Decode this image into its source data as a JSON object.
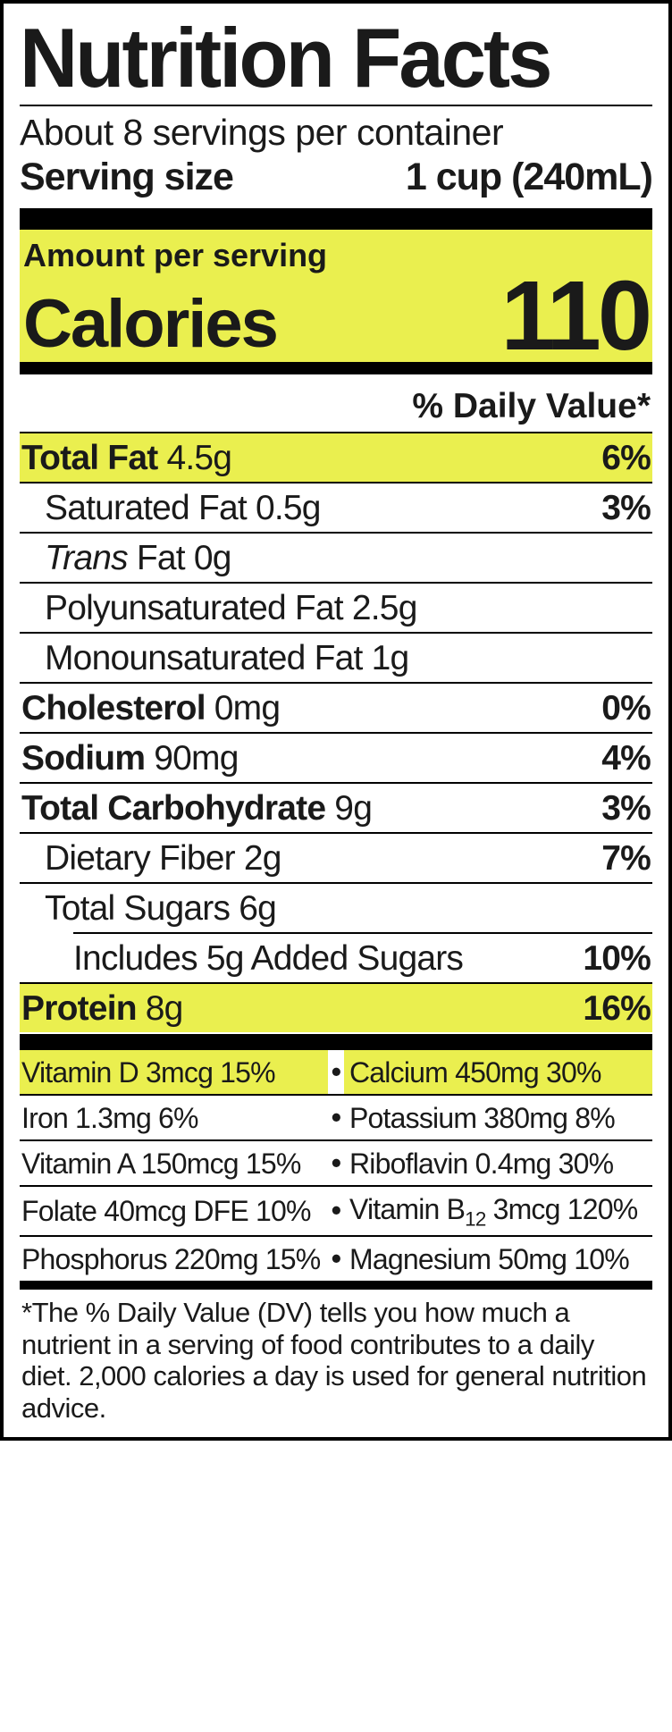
{
  "colors": {
    "highlight": "#eaef4f",
    "text": "#1a1a1a",
    "background": "#ffffff",
    "rule": "#000000"
  },
  "header": {
    "title": "Nutrition Facts",
    "servings_per_container": "About 8 servings per container",
    "serving_size_label": "Serving size",
    "serving_size_value": "1 cup (240mL)"
  },
  "calories_block": {
    "amount_label": "Amount per serving",
    "calories_label": "Calories",
    "calories_value": "110"
  },
  "dv_header": "% Daily Value*",
  "nutrients": {
    "total_fat": {
      "label": "Total Fat",
      "amount": "4.5g",
      "dv": "6%",
      "bold": true,
      "indent": 0,
      "highlight": true
    },
    "sat_fat": {
      "label": "Saturated Fat",
      "amount": "0.5g",
      "dv": "3%",
      "bold": false,
      "indent": 1
    },
    "trans_fat": {
      "label": "Trans Fat",
      "amount": "0g",
      "dv": "",
      "bold": false,
      "indent": 1
    },
    "poly_fat": {
      "label": "Polyunsaturated Fat",
      "amount": "2.5g",
      "dv": "",
      "bold": false,
      "indent": 1
    },
    "mono_fat": {
      "label": "Monounsaturated Fat",
      "amount": "1g",
      "dv": "",
      "bold": false,
      "indent": 1
    },
    "cholesterol": {
      "label": "Cholesterol",
      "amount": "0mg",
      "dv": "0%",
      "bold": true,
      "indent": 0
    },
    "sodium": {
      "label": "Sodium",
      "amount": "90mg",
      "dv": "4%",
      "bold": true,
      "indent": 0
    },
    "total_carb": {
      "label": "Total Carbohydrate",
      "amount": "9g",
      "dv": "3%",
      "bold": true,
      "indent": 0
    },
    "fiber": {
      "label": "Dietary Fiber",
      "amount": "2g",
      "dv": "7%",
      "bold": false,
      "indent": 1
    },
    "total_sugars": {
      "label": "Total Sugars",
      "amount": "6g",
      "dv": "",
      "bold": false,
      "indent": 1
    },
    "added_sugars": {
      "label": "Includes 5g Added Sugars",
      "amount": "",
      "dv": "10%",
      "bold": false,
      "indent": 2
    },
    "protein": {
      "label": "Protein",
      "amount": "8g",
      "dv": "16%",
      "bold": true,
      "indent": 0,
      "highlight": true
    }
  },
  "vitamins": [
    {
      "left": "Vitamin D 3mcg 15%",
      "right": "Calcium 450mg 30%",
      "highlight": true
    },
    {
      "left": "Iron 1.3mg 6%",
      "right": "Potassium 380mg 8%"
    },
    {
      "left": "Vitamin A 150mcg 15%",
      "right": "Riboflavin 0.4mg 30%"
    },
    {
      "left": "Folate 40mcg DFE 10%",
      "right": "Vitamin B₁₂ 3mcg 120%"
    },
    {
      "left": "Phosphorus 220mg 15%",
      "right": "Magnesium 50mg 10%"
    }
  ],
  "footnote": "*The % Daily Value (DV) tells you how much a nutrient in a serving of food contributes to a daily diet. 2,000 calories a day is used for general nutrition advice."
}
